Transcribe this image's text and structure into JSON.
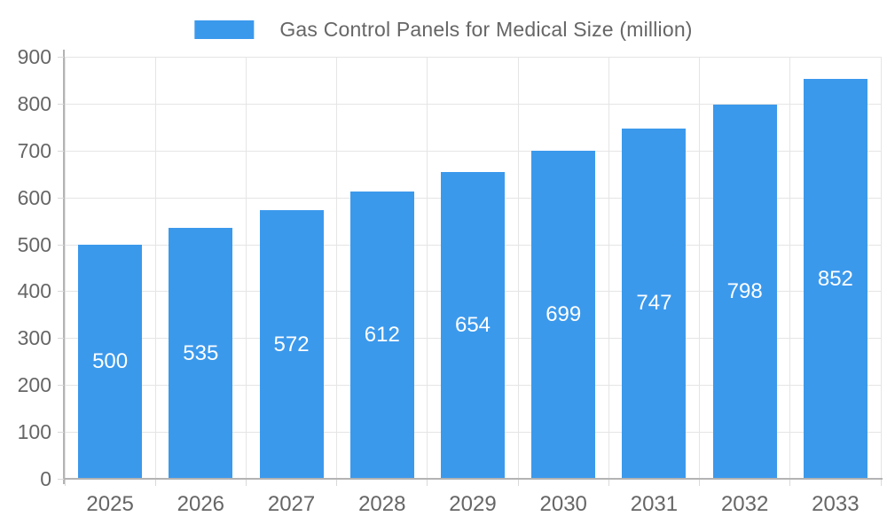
{
  "legend": {
    "label": "Gas Control Panels for Medical Size (million)"
  },
  "chart_data": {
    "type": "bar",
    "title": "Gas Control Panels for Medical Size (million)",
    "categories": [
      "2025",
      "2026",
      "2027",
      "2028",
      "2029",
      "2030",
      "2031",
      "2032",
      "2033"
    ],
    "values": [
      500,
      535,
      572,
      612,
      654,
      699,
      747,
      798,
      852
    ],
    "xlabel": "",
    "ylabel": "",
    "ylim": [
      0,
      900
    ],
    "ytick_step": 100,
    "grid": true,
    "legend_position": "top",
    "bar_value_labels": [
      "500",
      "535",
      "572",
      "612",
      "654",
      "699",
      "747",
      "798",
      "852"
    ],
    "colors": {
      "bar": "#3B99EC",
      "bar_label_text": "#ffffff",
      "grid_line": "#e5e5e5",
      "axis_line": "#b3b3b3",
      "tick_mark": "#d9d9d9",
      "axis_text": "#666666",
      "legend_text": "#666666",
      "background": "#ffffff"
    }
  }
}
